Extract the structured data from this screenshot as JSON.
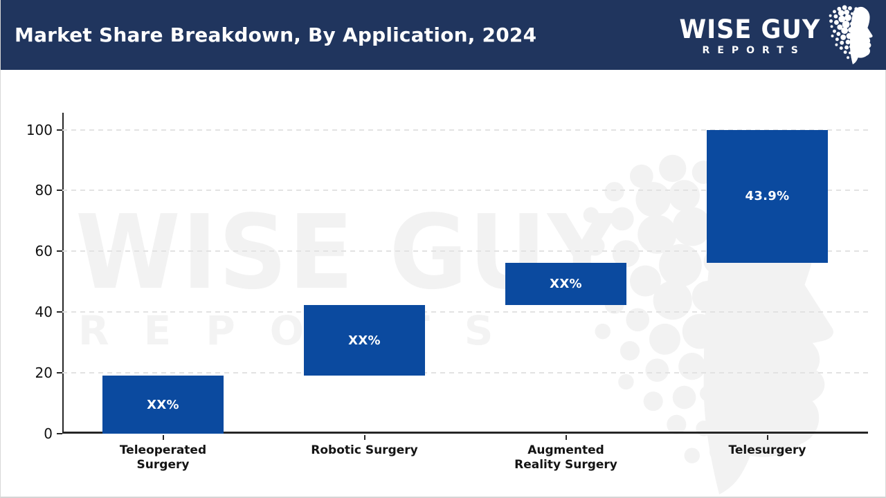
{
  "header": {
    "title": "Market Share Breakdown, By Application, 2024",
    "brand": {
      "name": "WISE GUY",
      "subname": "REPORTS"
    }
  },
  "watermark": {
    "line1": "WISE GUY",
    "line2": "REPORTS"
  },
  "chart_data": {
    "type": "bar",
    "subtype": "waterfall",
    "title": "Market Share Breakdown, By Application, 2024",
    "categories": [
      "Teleoperated Surgery",
      "Robotic Surgery",
      "Augmented Reality Surgery",
      "Telesurgery"
    ],
    "series": [
      {
        "name": "Market share (%)",
        "starts": [
          0,
          19,
          42.3,
          56.1
        ],
        "ends": [
          19,
          42.3,
          56.1,
          100
        ],
        "values": [
          19,
          23.3,
          13.8,
          43.9
        ],
        "labels": [
          "XX%",
          "XX%",
          "XX%",
          "43.9%"
        ]
      }
    ],
    "yticks": [
      0,
      20,
      40,
      60,
      80,
      100
    ],
    "ylim": [
      0,
      105
    ],
    "xlabel": "",
    "ylabel": "",
    "grid": "horizontal-dashed",
    "legend": "none",
    "bar_color": "#0B4A9F",
    "label_color": "#ffffff",
    "axis_color": "#262626",
    "grid_color": "#e2e2e2"
  }
}
